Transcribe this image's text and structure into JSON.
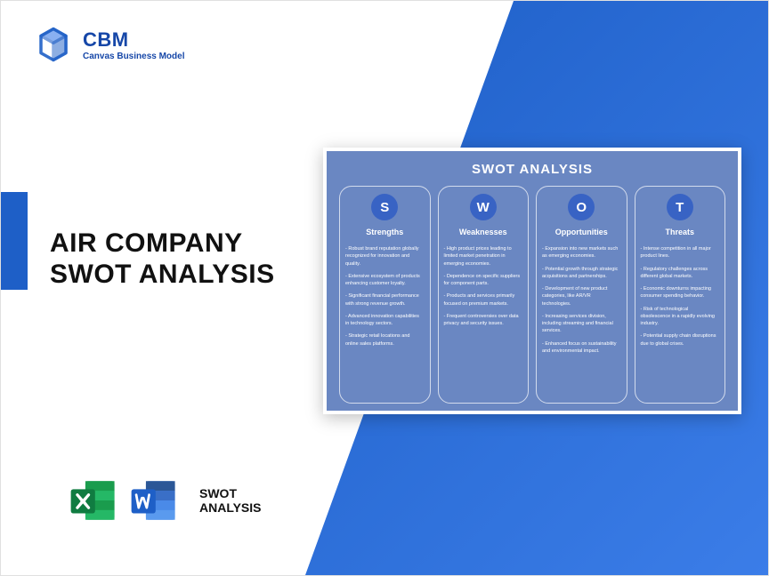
{
  "brand": {
    "title": "CBM",
    "subtitle": "Canvas Business Model",
    "logo_color": "#1e5fc7"
  },
  "main_title_line1": "AIR COMPANY",
  "main_title_line2": "SWOT ANALYSIS",
  "footer": {
    "excel_color": "#1a9c4d",
    "word_color": "#1e5fc7",
    "label_line1": "SWOT",
    "label_line2": "ANALYSIS"
  },
  "swot": {
    "title": "SWOT ANALYSIS",
    "background_color": "#6a87c2",
    "circle_color": "#3863c4",
    "columns": [
      {
        "letter": "S",
        "name": "Strengths",
        "items": [
          "- Robust brand reputation globally recognized for innovation and quality.",
          "- Extensive ecosystem of products enhancing customer loyalty.",
          "- Significant financial performance with strong revenue growth.",
          "- Advanced innovation capabilities in technology sectors.",
          "- Strategic retail locations and online sales platforms."
        ]
      },
      {
        "letter": "W",
        "name": "Weaknesses",
        "items": [
          "- High product prices leading to limited market penetration in emerging economies.",
          "- Dependence on specific suppliers for component parts.",
          "- Products and services primarily focused on premium markets.",
          "- Frequent controversies over data privacy and security issues."
        ]
      },
      {
        "letter": "O",
        "name": "Opportunities",
        "items": [
          "- Expansion into new markets such as emerging economies.",
          "- Potential growth through strategic acquisitions and partnerships.",
          "- Development of new product categories, like AR/VR technologies.",
          "- Increasing services division, including streaming and financial services.",
          "- Enhanced focus on sustainability and environmental impact."
        ]
      },
      {
        "letter": "T",
        "name": "Threats",
        "items": [
          "- Intense competition in all major product lines.",
          "- Regulatory challenges across different global markets.",
          "- Economic downturns impacting consumer spending behavior.",
          "- Risk of technological obsolescence in a rapidly evolving industry.",
          "- Potential supply chain disruptions due to global crises."
        ]
      }
    ]
  },
  "colors": {
    "primary_blue": "#1e5fc7",
    "gradient_end": "#3b7de8"
  }
}
